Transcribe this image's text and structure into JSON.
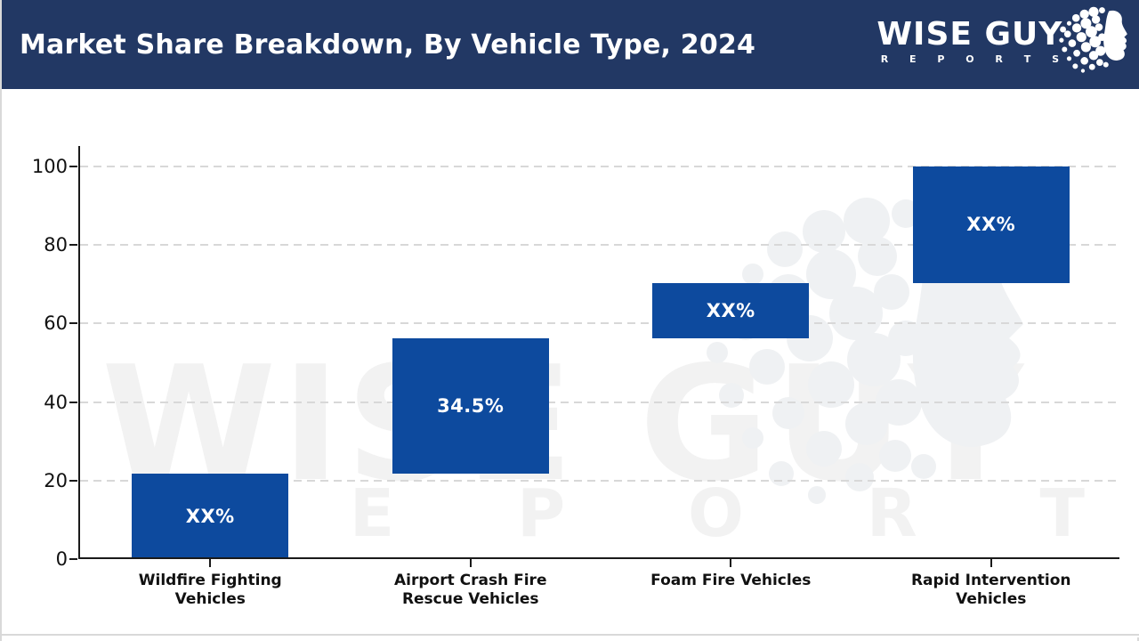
{
  "header": {
    "background": "#223864",
    "title": "Market Share Breakdown, By Vehicle Type, 2024",
    "logo": {
      "line1": "WISE GUY",
      "line2": "R E P O R T S"
    }
  },
  "watermark": {
    "line1": "WISE GUY",
    "line2": "R E P O R T S"
  },
  "chart_data": {
    "type": "bar",
    "subtype": "floating-waterfall",
    "title": "Market Share Breakdown, By Vehicle Type, 2024",
    "categories": [
      [
        "Wildfire Fighting",
        "Vehicles"
      ],
      [
        "Airport Crash Fire",
        "Rescue Vehicles"
      ],
      [
        "Foam Fire Vehicles"
      ],
      [
        "Rapid Intervention",
        "Vehicles"
      ]
    ],
    "bars": [
      {
        "start": 0,
        "end": 21.7,
        "label": "XX%"
      },
      {
        "start": 21.7,
        "end": 56.2,
        "label": "34.5%"
      },
      {
        "start": 56.2,
        "end": 70.4,
        "label": "XX%"
      },
      {
        "start": 70.4,
        "end": 100,
        "label": "XX%"
      }
    ],
    "yticks": [
      0,
      20,
      40,
      60,
      80,
      100
    ],
    "ylim": [
      0,
      100
    ],
    "xlabel": "",
    "ylabel": "",
    "legend": "none",
    "grid": "horizontal-dashed",
    "bar_color": "#0d4a9e",
    "grid_color": "#d8d8d8",
    "axis_color": "#1a1a1a",
    "label_color": "#ffffff",
    "watermark_color": "#f2f2f2"
  }
}
